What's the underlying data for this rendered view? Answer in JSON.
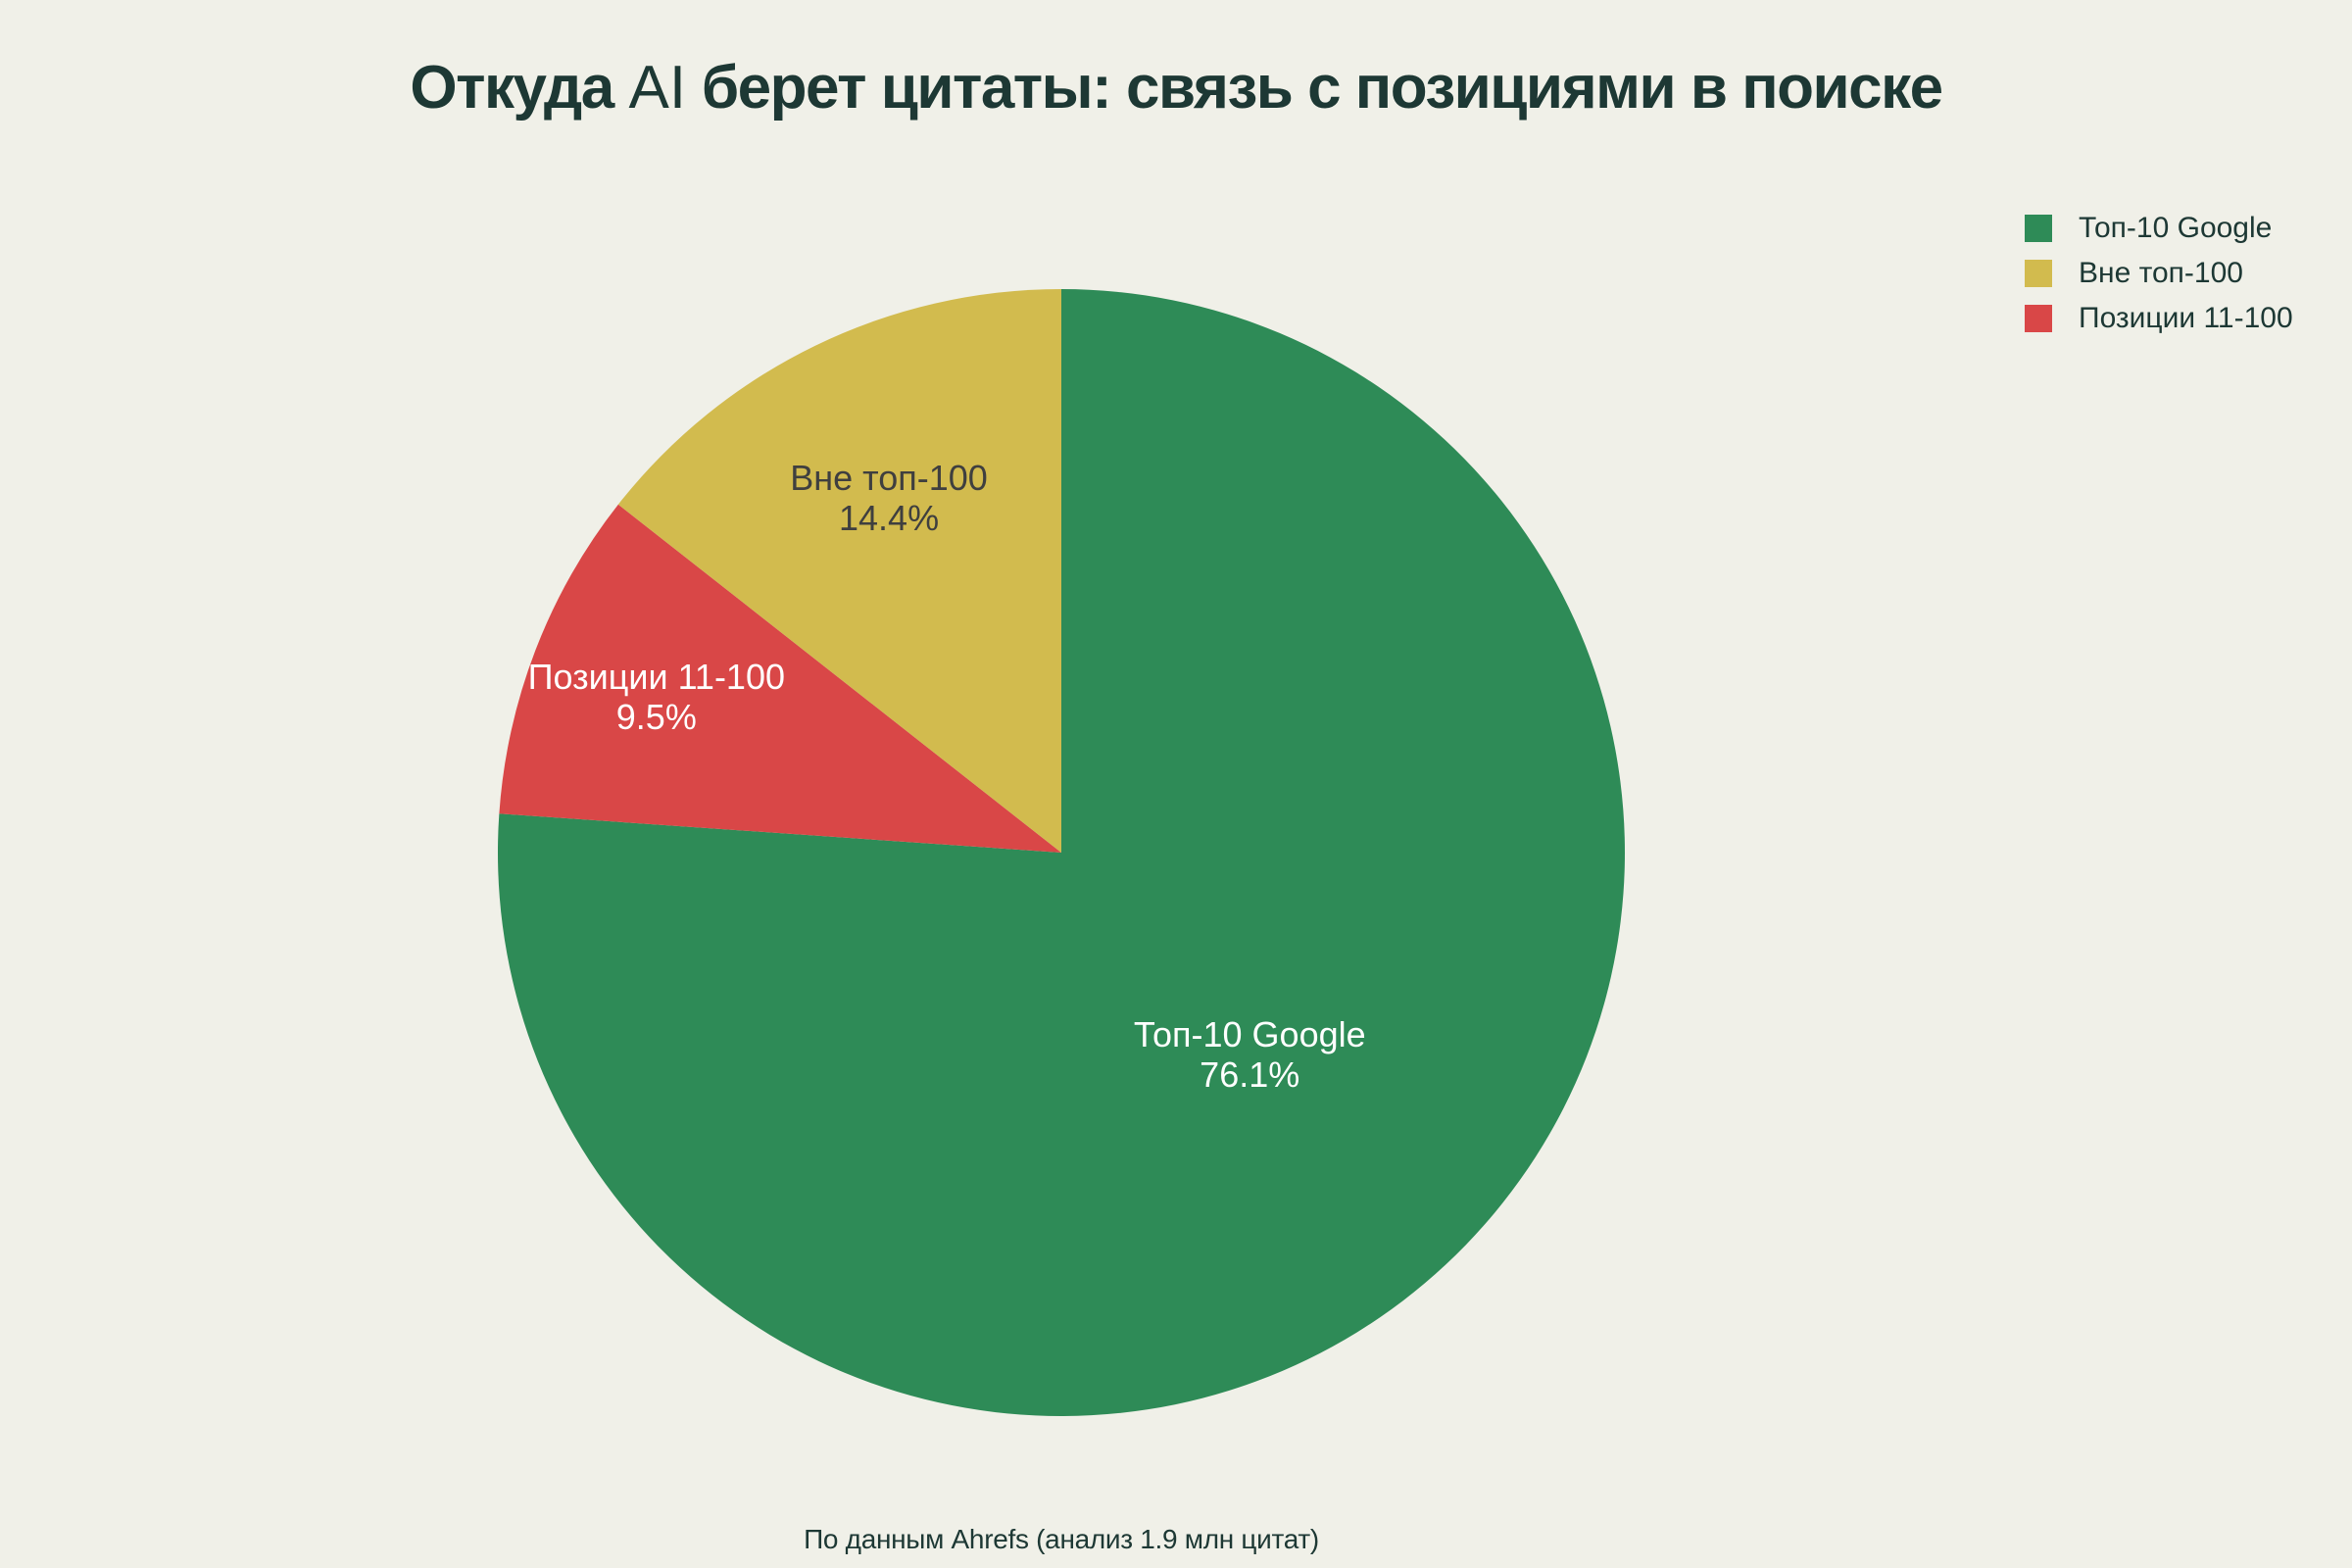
{
  "title": {
    "part1": "Откуда",
    "ai": "AI",
    "part2": "берет цитаты: связь с позициями в поиске"
  },
  "footer": "По данным Ahrefs (анализ 1.9 млн цитат)",
  "colors": {
    "background": "#F0F0E8",
    "text": "#1D3834",
    "green": "#2E8B57",
    "yellow": "#D2BB4E",
    "red": "#D94747"
  },
  "legend": {
    "items": [
      {
        "label": "Топ-10 Google",
        "color": "#2E8B57"
      },
      {
        "label": "Вне топ-100",
        "color": "#D2BB4E"
      },
      {
        "label": "Позиции 11-100",
        "color": "#D94747"
      }
    ]
  },
  "chart_data": {
    "type": "pie",
    "title": "Откуда AI берет цитаты: связь с позициями в поиске",
    "source_note": "По данным Ahrefs (анализ 1.9 млн цитат)",
    "start_angle_deg": 0,
    "direction": "clockwise",
    "legend_position": "upper right",
    "slices": [
      {
        "label": "Топ-10 Google",
        "value_pct": 76.1,
        "color": "#2E8B57",
        "text_color": "#FFFFFF",
        "label_distance": 0.49
      },
      {
        "label": "Позиции 11-100",
        "value_pct": 9.5,
        "color": "#D94747",
        "text_color": "#FFFFFF",
        "label_distance": 0.77
      },
      {
        "label": "Вне топ-100",
        "value_pct": 14.4,
        "color": "#D2BB4E",
        "text_color": "#3F3F3F",
        "label_distance": 0.7
      }
    ]
  }
}
